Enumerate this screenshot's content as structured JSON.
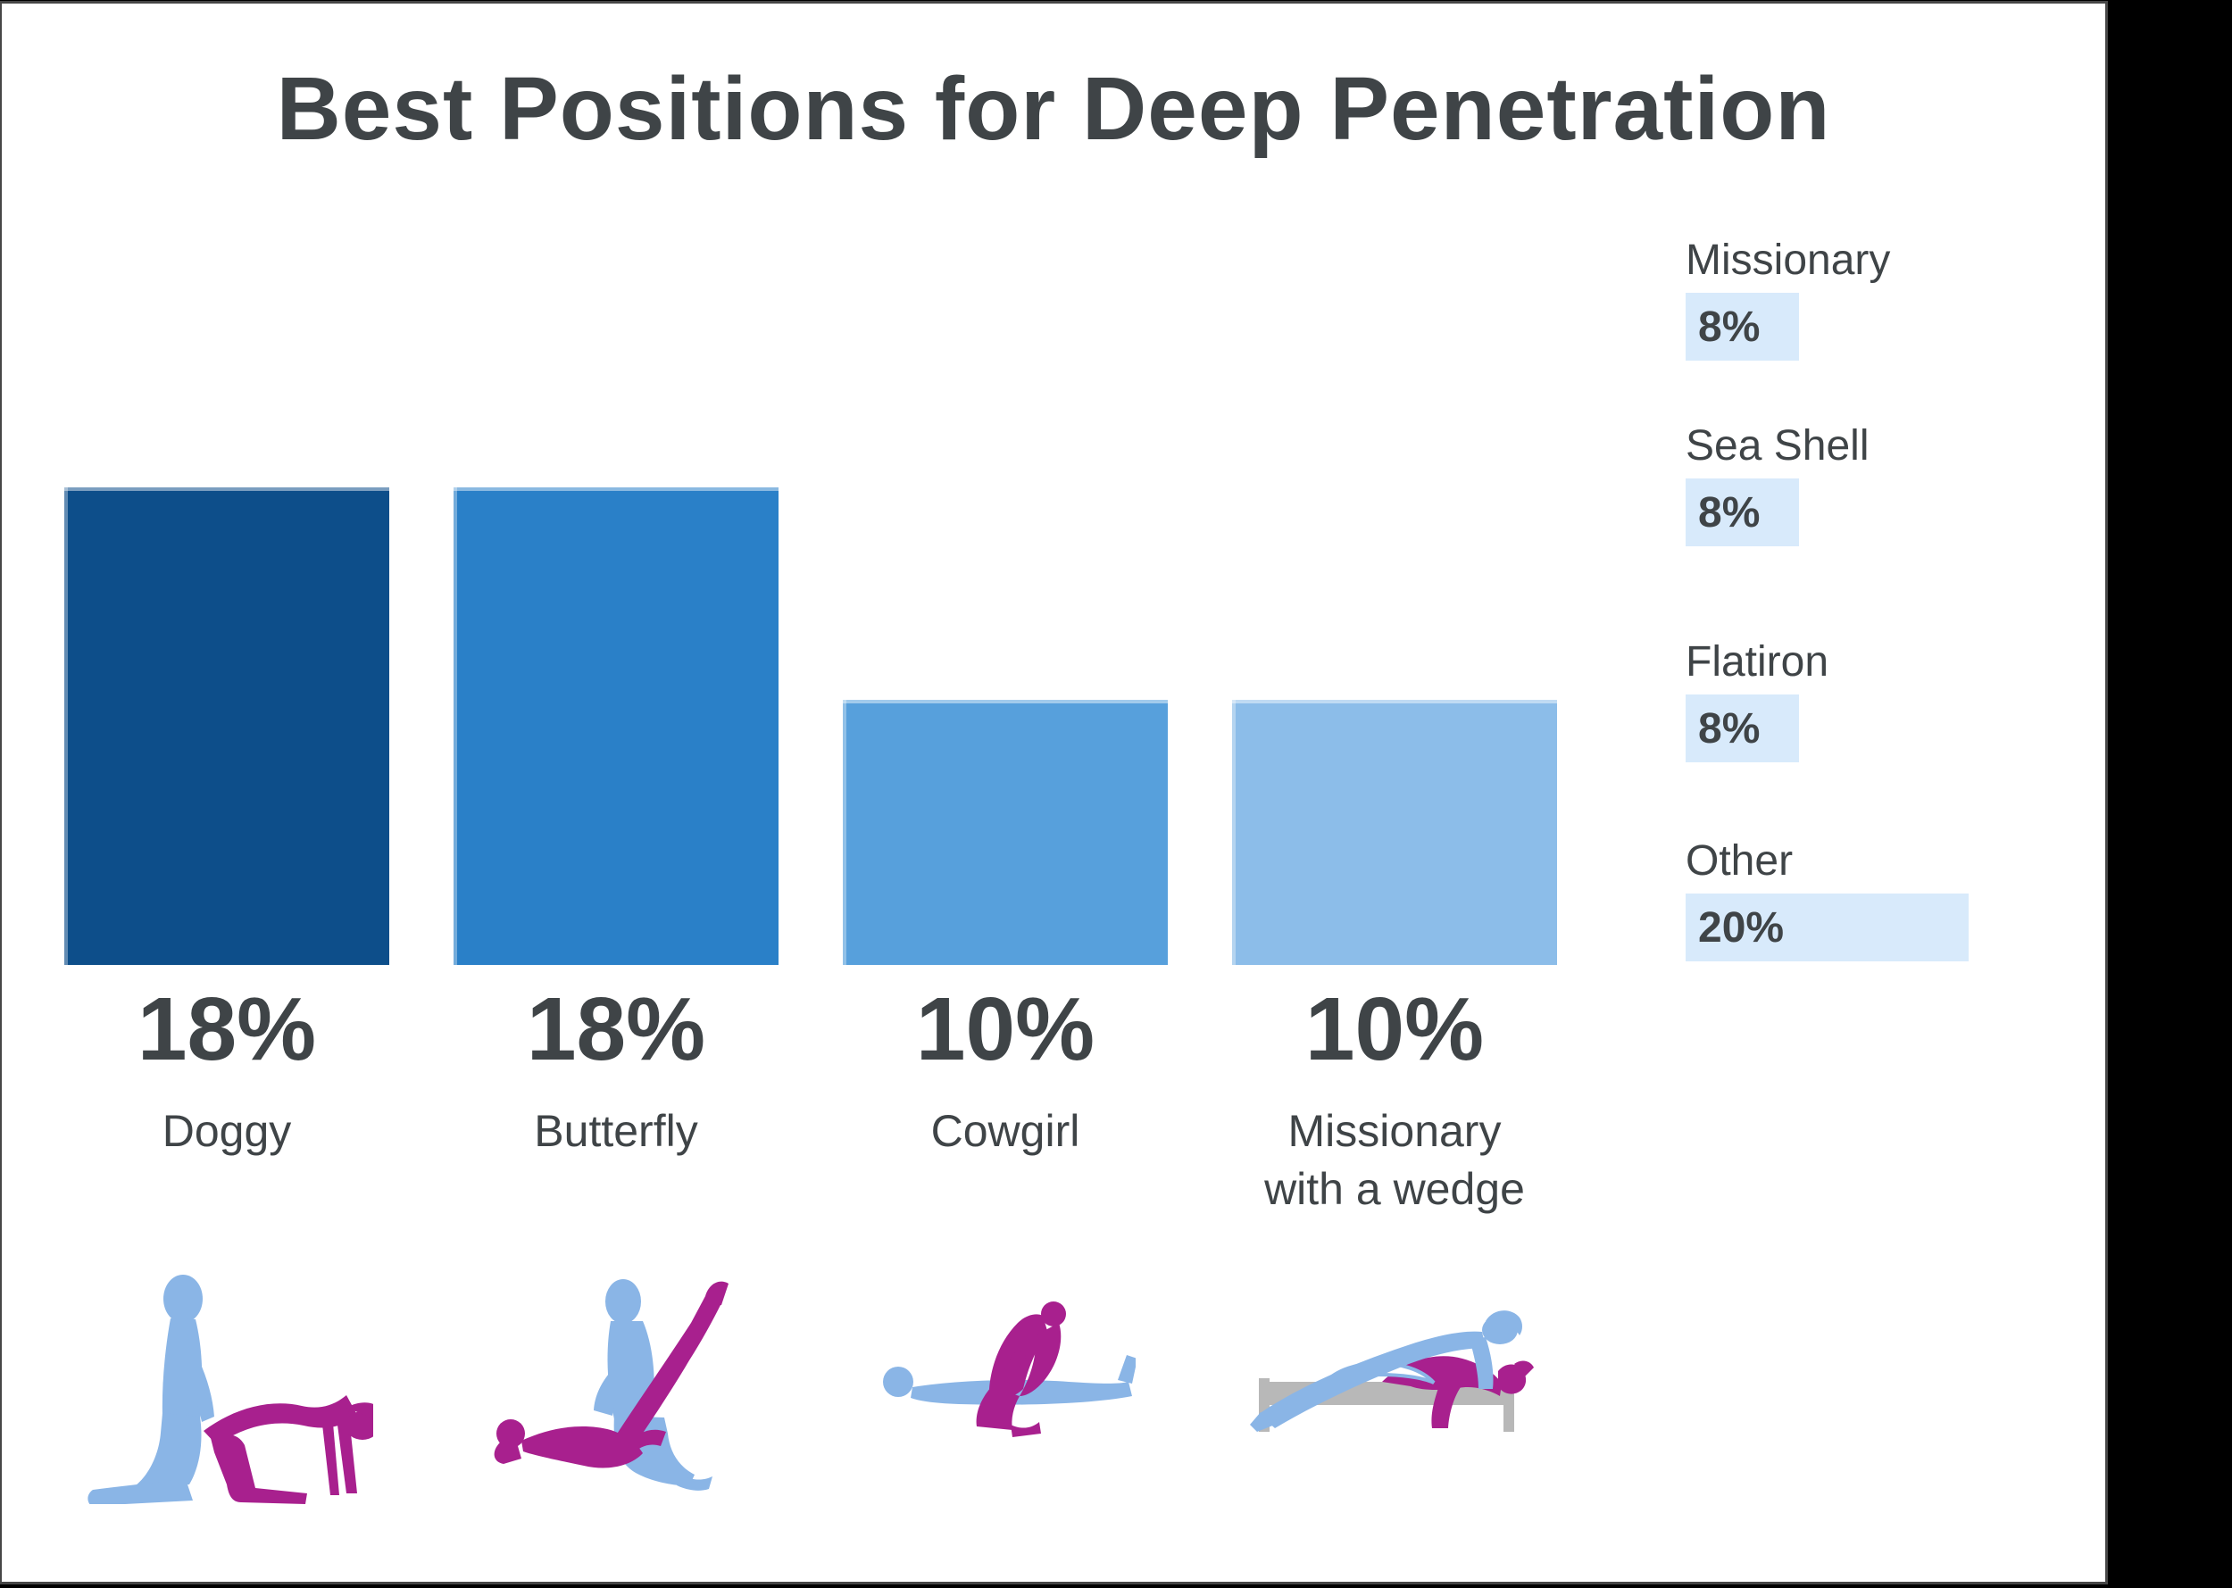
{
  "page": {
    "background_color": "#000000",
    "card_background_color": "#ffffff",
    "text_color": "#3f4447"
  },
  "title": "Best Positions for Deep Penetration",
  "chart_data": {
    "type": "bar",
    "title": "Best Positions for Deep Penetration",
    "unit": "percent",
    "grid": false,
    "axes_shown": false,
    "categories": [
      "Doggy",
      "Butterfly",
      "Cowgirl",
      "Missionary with a wedge"
    ],
    "values": [
      18,
      18,
      10,
      10
    ],
    "bars": [
      {
        "label": "Doggy",
        "value": 18,
        "value_label": "18%",
        "color": "#0d4e8a"
      },
      {
        "label": "Butterfly",
        "value": 18,
        "value_label": "18%",
        "color": "#2a80c8"
      },
      {
        "label": "Cowgirl",
        "value": 10,
        "value_label": "10%",
        "color": "#57a0dc"
      },
      {
        "label": "Missionary\nwith a wedge",
        "value": 10,
        "value_label": "10%",
        "color": "#8cbde9"
      }
    ],
    "legend_position": "right",
    "legend_bar_color": "#d8eafb",
    "legend": [
      {
        "label": "Missionary",
        "value": 8,
        "value_label": "8%"
      },
      {
        "label": "Sea Shell",
        "value": 8,
        "value_label": "8%"
      },
      {
        "label": "Flatiron",
        "value": 8,
        "value_label": "8%"
      },
      {
        "label": "Other",
        "value": 20,
        "value_label": "20%"
      }
    ]
  },
  "illustrations": {
    "names": [
      "doggy-position",
      "butterfly-position",
      "cowgirl-position",
      "missionary-with-wedge-position"
    ],
    "figure_blue_color": "#8ab5e6",
    "figure_magenta_color": "#a8208e",
    "bed_color": "#b8b8b8",
    "pillow_color": "#ffffff"
  }
}
